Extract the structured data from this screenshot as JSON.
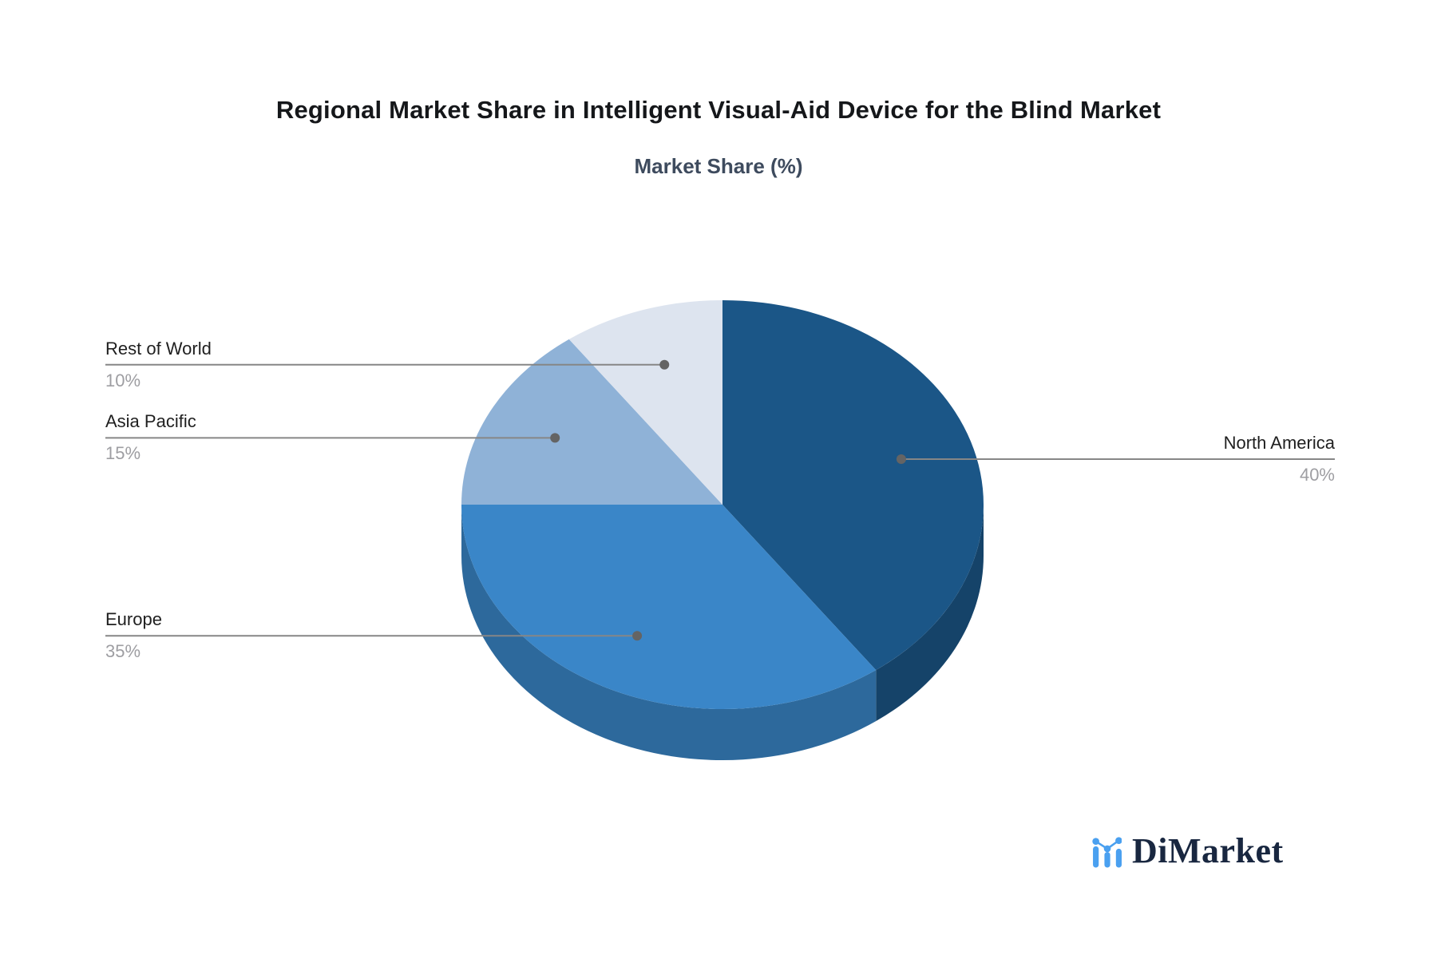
{
  "chart_data": {
    "type": "pie",
    "title": "Regional Market Share in Intelligent Visual-Aid Device for the Blind Market",
    "subtitle": "Market Share (%)",
    "unit": "%",
    "effect": "3d-extruded",
    "direction": "clockwise",
    "start_angle_deg": 0,
    "legend_position": "none",
    "labels_style": "leader-lines",
    "slices": [
      {
        "label": "North America",
        "value": 40,
        "display": "40%",
        "color": "#1b5687",
        "label_anchor": "right"
      },
      {
        "label": "Europe",
        "value": 35,
        "display": "35%",
        "color": "#3a86c8",
        "label_anchor": "left"
      },
      {
        "label": "Asia Pacific",
        "value": 15,
        "display": "15%",
        "color": "#8fb2d7",
        "label_anchor": "left"
      },
      {
        "label": "Rest of World",
        "value": 10,
        "display": "10%",
        "color": "#dde4ef",
        "label_anchor": "left"
      }
    ],
    "title_color": "#15171a",
    "subtitle_color": "#3e4b5e",
    "label_color": "#1f1f1f",
    "value_color": "#9e9ea2",
    "leader_line_color": "#868686",
    "leader_dot_color": "#646464"
  },
  "branding": {
    "logo_text": "DiMarket",
    "logo_icon": "bar-chart-with-trend-icon",
    "logo_text_color": "#192740",
    "logo_accent_color": "#4aa0f0"
  }
}
